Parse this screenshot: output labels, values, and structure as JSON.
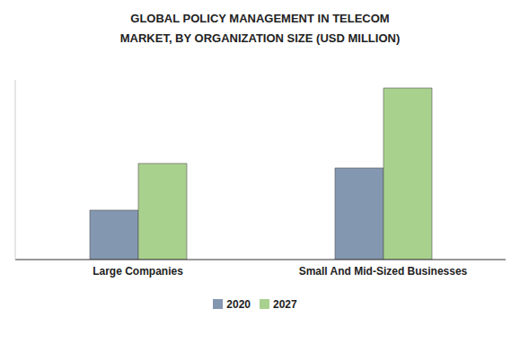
{
  "chart_data": {
    "type": "bar",
    "title": "GLOBAL POLICY MANAGEMENT IN TELECOM MARKET, BY ORGANIZATION SIZE (USD MILLION)",
    "categories": [
      "Large Companies",
      "Small And Mid-Sized Businesses"
    ],
    "series": [
      {
        "name": "2020",
        "color": "#8497b0",
        "values": [
          55,
          102
        ]
      },
      {
        "name": "2027",
        "color": "#a9d18e",
        "values": [
          107,
          191
        ]
      }
    ],
    "ylim": [
      0,
      200
    ],
    "tick_labels": "x",
    "legend": "bottom",
    "grid": false
  }
}
